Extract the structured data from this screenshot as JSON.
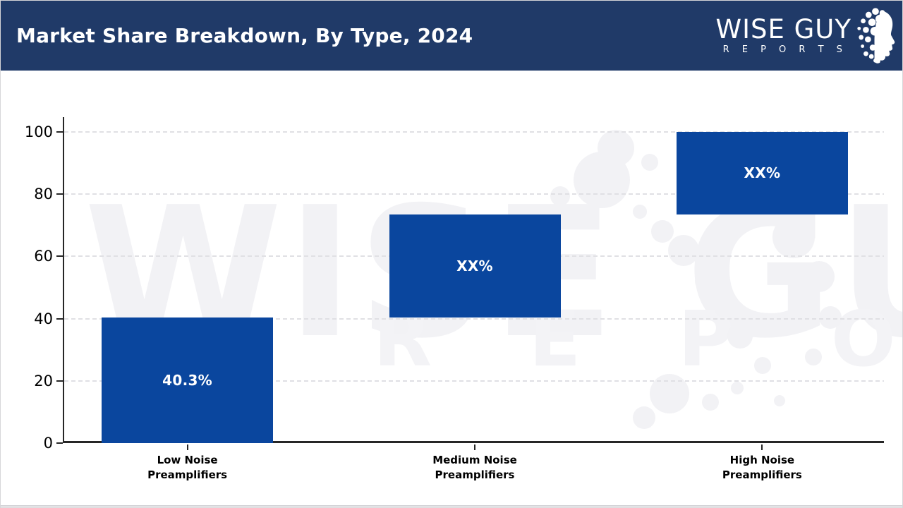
{
  "header": {
    "title": "Market Share Breakdown, By Type, 2024",
    "logo": {
      "wordmark": "WISE GUY",
      "subtext": "R E P O R T S"
    }
  },
  "watermark": {
    "line1": "WISE GUY",
    "line2": "R E P O R T S"
  },
  "chart_data": {
    "type": "bar",
    "subtype": "stepped-waterfall",
    "title": "Market Share Breakdown, By Type, 2024",
    "categories": [
      "Low Noise Preamplifiers",
      "Medium Noise Preamplifiers",
      "High Noise Preamplifiers"
    ],
    "category_lines": [
      [
        "Low Noise",
        "Preamplifiers"
      ],
      [
        "Medium Noise",
        "Preamplifiers"
      ],
      [
        "High Noise",
        "Preamplifiers"
      ]
    ],
    "segments": [
      {
        "category": "Low Noise Preamplifiers",
        "start": 0,
        "end": 40.3,
        "label": "40.3%"
      },
      {
        "category": "Medium Noise Preamplifiers",
        "start": 40.3,
        "end": 73.5,
        "label": "XX%"
      },
      {
        "category": "High Noise Preamplifiers",
        "start": 73.5,
        "end": 100,
        "label": "XX%"
      }
    ],
    "xlabel": "",
    "ylabel": "",
    "ylim": [
      0,
      100
    ],
    "yticks": [
      0,
      20,
      40,
      60,
      80,
      100
    ],
    "grid": {
      "horizontal": true,
      "style": "dashed"
    },
    "legend": "none",
    "bar_color": "#0a469e",
    "bar_label_color": "#ffffff"
  },
  "colors": {
    "header_bg": "#203a68",
    "bar": "#0a469e",
    "grid": "#e0e0e4",
    "axis": "#262626",
    "watermark": "#f2f2f5"
  }
}
